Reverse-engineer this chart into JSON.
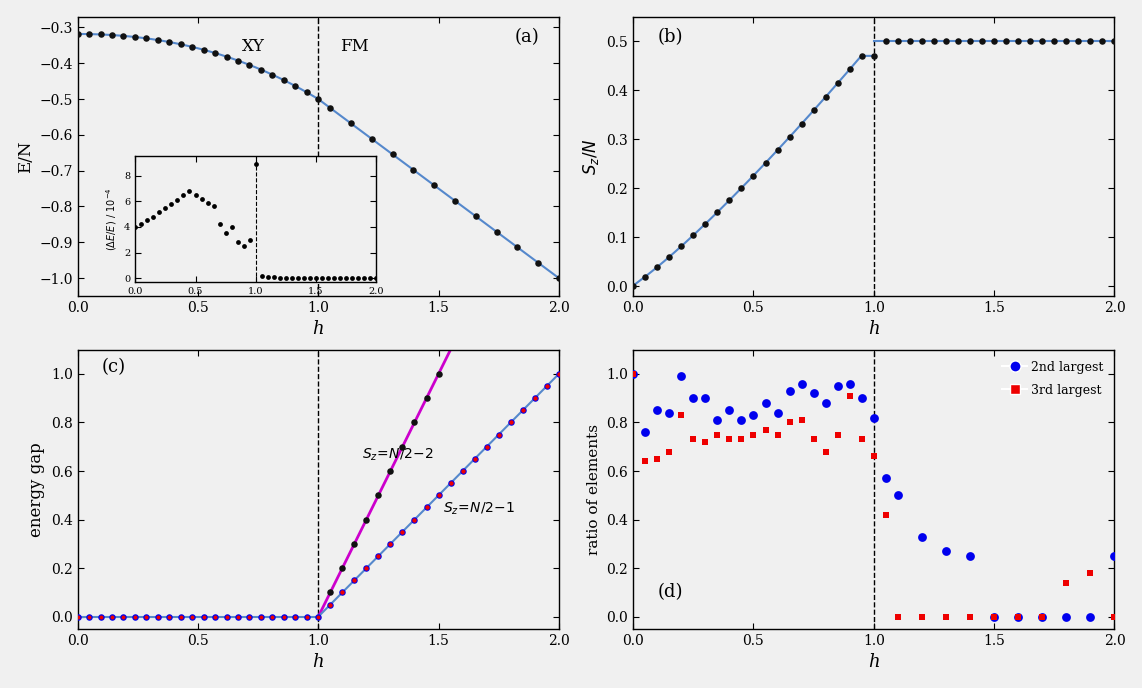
{
  "fig_bg": "#f0f0f0",
  "ax_bg": "#f0f0f0",
  "panel_a": {
    "label": "(a)",
    "line_color": "#5588CC",
    "dot_color": "#111111",
    "xlabel": "h",
    "ylabel": "E/N",
    "xlim": [
      0.0,
      2.0
    ],
    "ylim": [
      -1.05,
      -0.27
    ],
    "yticks": [
      -1.0,
      -0.9,
      -0.8,
      -0.7,
      -0.6,
      -0.5,
      -0.4,
      -0.3
    ],
    "xticks": [
      0.0,
      0.5,
      1.0,
      1.5,
      2.0
    ],
    "vline_x": 1.0,
    "xy_label": "XY",
    "fm_label": "FM",
    "inset_dE": [
      4.0,
      4.2,
      4.5,
      4.8,
      5.2,
      5.5,
      5.8,
      6.1,
      6.5,
      6.8,
      6.5,
      6.2,
      5.9,
      5.6,
      4.2,
      3.5,
      4.0,
      2.8,
      2.5,
      3.0,
      8.9,
      0.15,
      0.1,
      0.08,
      0.05,
      0.05,
      0.05,
      0.05,
      0.05,
      0.05,
      0.05,
      0.05,
      0.05,
      0.05,
      0.05,
      0.05,
      0.05,
      0.05,
      0.05,
      0.05,
      0.05
    ],
    "inset_h": [
      0.0,
      0.05,
      0.1,
      0.15,
      0.2,
      0.25,
      0.3,
      0.35,
      0.4,
      0.45,
      0.5,
      0.55,
      0.6,
      0.65,
      0.7,
      0.75,
      0.8,
      0.85,
      0.9,
      0.95,
      1.0,
      1.05,
      1.1,
      1.15,
      1.2,
      1.25,
      1.3,
      1.35,
      1.4,
      1.45,
      1.5,
      1.55,
      1.6,
      1.65,
      1.7,
      1.75,
      1.8,
      1.85,
      1.9,
      1.95,
      2.0
    ]
  },
  "panel_b": {
    "label": "(b)",
    "line_color": "#5588CC",
    "dot_color": "#111111",
    "xlabel": "h",
    "ylabel": "S_z/N",
    "xlim": [
      0.0,
      2.0
    ],
    "ylim": [
      -0.02,
      0.55
    ],
    "yticks": [
      0.0,
      0.1,
      0.2,
      0.3,
      0.4,
      0.5
    ],
    "xticks": [
      0.0,
      0.5,
      1.0,
      1.5,
      2.0
    ],
    "vline_x": 1.0
  },
  "panel_c": {
    "label": "(c)",
    "line1_color": "#5588CC",
    "line2_color": "#CC00CC",
    "dot1_color": "#0000EE",
    "dot2_color": "#EE0000",
    "dot3_color": "#111111",
    "xlabel": "h",
    "ylabel": "energy gap",
    "xlim": [
      0.0,
      2.0
    ],
    "ylim": [
      -0.05,
      1.1
    ],
    "yticks": [
      0.0,
      0.2,
      0.4,
      0.6,
      0.8,
      1.0
    ],
    "xticks": [
      0.0,
      0.5,
      1.0,
      1.5,
      2.0
    ],
    "vline_x": 1.0
  },
  "panel_d": {
    "label": "(d)",
    "h_blue": [
      0.0,
      0.05,
      0.1,
      0.15,
      0.2,
      0.25,
      0.3,
      0.35,
      0.4,
      0.45,
      0.5,
      0.55,
      0.6,
      0.65,
      0.7,
      0.75,
      0.8,
      0.85,
      0.9,
      0.95,
      1.0,
      1.05,
      1.1,
      1.2,
      1.3,
      1.4,
      1.5,
      1.6,
      1.7,
      1.8,
      1.9,
      2.0
    ],
    "r_blue": [
      1.0,
      0.76,
      0.85,
      0.84,
      0.99,
      0.9,
      0.9,
      0.81,
      0.85,
      0.81,
      0.83,
      0.88,
      0.84,
      0.93,
      0.96,
      0.92,
      0.88,
      0.95,
      0.96,
      0.9,
      0.82,
      0.57,
      0.5,
      0.33,
      0.27,
      0.25,
      0.0,
      0.0,
      0.0,
      0.0,
      0.0,
      0.25
    ],
    "h_red": [
      0.0,
      0.05,
      0.1,
      0.15,
      0.2,
      0.25,
      0.3,
      0.35,
      0.4,
      0.45,
      0.5,
      0.55,
      0.6,
      0.65,
      0.7,
      0.75,
      0.8,
      0.85,
      0.9,
      0.95,
      1.0,
      1.05,
      1.1,
      1.2,
      1.3,
      1.4,
      1.5,
      1.6,
      1.7,
      1.8,
      1.9,
      2.0
    ],
    "r_red": [
      1.0,
      0.64,
      0.65,
      0.68,
      0.83,
      0.73,
      0.72,
      0.75,
      0.73,
      0.73,
      0.75,
      0.77,
      0.75,
      0.8,
      0.81,
      0.73,
      0.68,
      0.75,
      0.91,
      0.73,
      0.66,
      0.42,
      0.0,
      0.0,
      0.0,
      0.0,
      0.0,
      0.0,
      0.0,
      0.14,
      0.18,
      0.0
    ],
    "blue_color": "#0000EE",
    "red_color": "#EE0000",
    "xlabel": "h",
    "ylabel": "ratio of elements",
    "xlim": [
      0.0,
      2.0
    ],
    "ylim": [
      -0.05,
      1.1
    ],
    "yticks": [
      0.0,
      0.2,
      0.4,
      0.6,
      0.8,
      1.0
    ],
    "xticks": [
      0.0,
      0.5,
      1.0,
      1.5,
      2.0
    ],
    "vline_x": 1.0,
    "legend_blue": "2nd largest",
    "legend_red": "3rd largest"
  }
}
